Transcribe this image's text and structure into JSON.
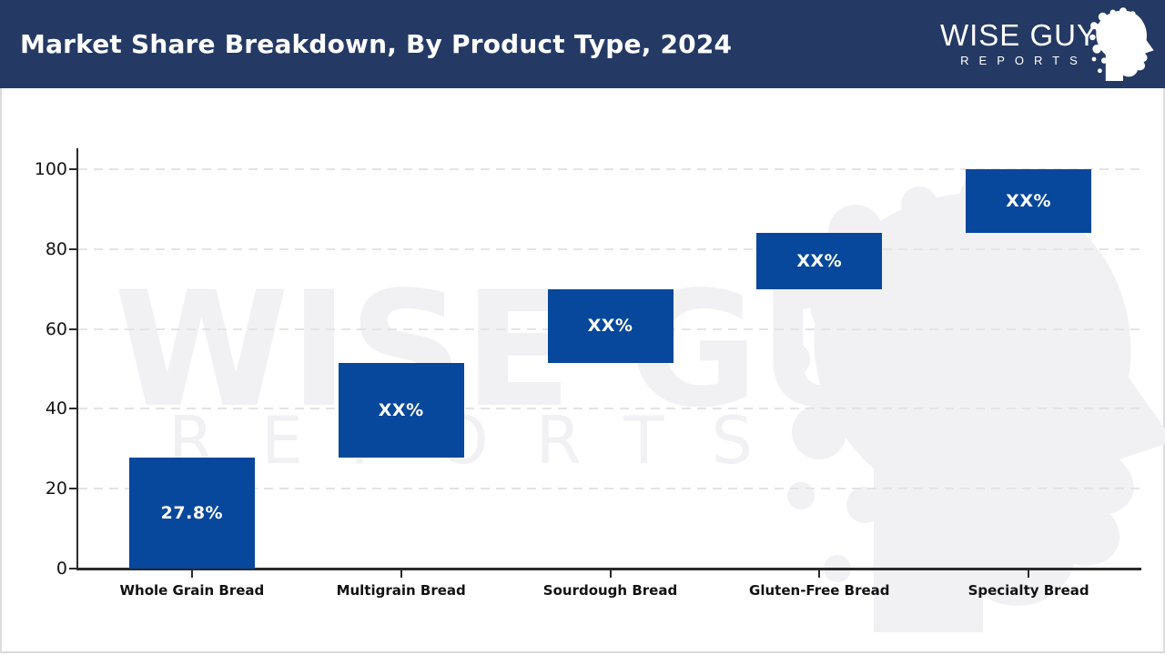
{
  "header": {
    "title": "Market Share Breakdown, By Product Type, 2024",
    "logo": {
      "wordmark": "WISE GUY",
      "subtitle": "REPORTS"
    }
  },
  "watermark": {
    "line1": "WISE GUY",
    "line2": "REPORTS"
  },
  "chart_data": {
    "type": "bar",
    "subtype": "waterfall",
    "title": "Market Share Breakdown, By Product Type, 2024",
    "categories": [
      "Whole Grain Bread",
      "Multigrain Bread",
      "Sourdough Bread",
      "Gluten-Free Bread",
      "Specialty Bread"
    ],
    "segments": [
      {
        "category": "Whole Grain Bread",
        "start": 0,
        "end": 27.8,
        "label": "27.8%"
      },
      {
        "category": "Multigrain Bread",
        "start": 27.8,
        "end": 51.5,
        "label": "XX%"
      },
      {
        "category": "Sourdough Bread",
        "start": 51.5,
        "end": 70.0,
        "label": "XX%"
      },
      {
        "category": "Gluten-Free Bread",
        "start": 70.0,
        "end": 84.0,
        "label": "XX%"
      },
      {
        "category": "Specialty Bread",
        "start": 84.0,
        "end": 100.0,
        "label": "XX%"
      }
    ],
    "xlabel": "",
    "ylabel": "",
    "ylim": [
      0,
      105
    ],
    "yticks": [
      0,
      20,
      40,
      60,
      80,
      100
    ],
    "grid": "horizontal-dashed",
    "legend": "none",
    "bar_color": "#07479c",
    "value_label_color": "#ffffff"
  },
  "colors": {
    "header_bg": "#243a64",
    "bar": "#07479c",
    "grid": "#e4e4e6",
    "axis": "#2a2a2a",
    "watermark": "#f1f1f4",
    "page_border": "#dcdcdc"
  }
}
